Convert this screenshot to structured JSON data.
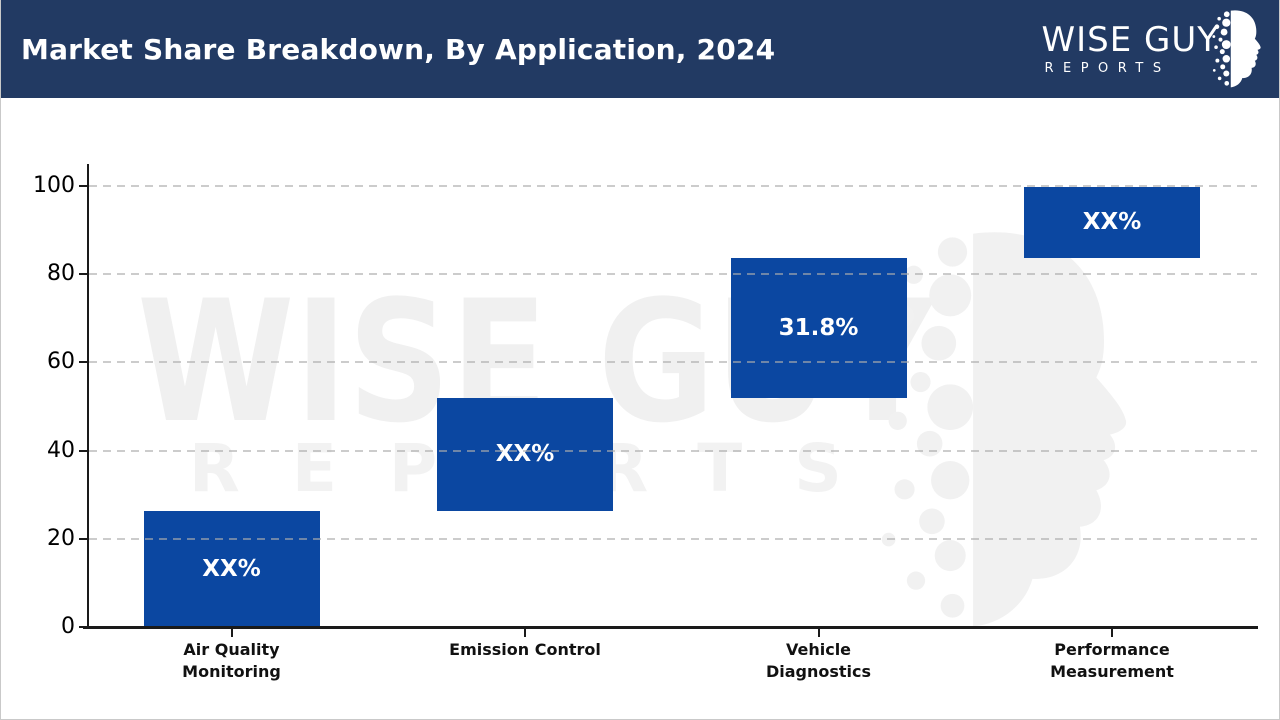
{
  "page": {
    "background": "#ffffff",
    "border_color": "#c9c9c9"
  },
  "header": {
    "title": "Market Share Breakdown, By Application, 2024",
    "bg_color": "#223a63",
    "text_color": "#ffffff",
    "logo": {
      "line1": "WISE GUY",
      "line2": "REPORTS"
    }
  },
  "watermark": {
    "line1": "WISE GUY",
    "line2": "REPORTS"
  },
  "chart_data": {
    "type": "bar",
    "subtype": "floating-segment bars (waterfall-style market share breakdown)",
    "title": "",
    "xlabel": "",
    "ylabel": "",
    "categories": [
      "Air Quality\nMonitoring",
      "Emission Control",
      "Vehicle\nDiagnostics",
      "Performance\nMeasurement"
    ],
    "series": [
      {
        "name": "Market share (%)",
        "segments": [
          {
            "category": "Air Quality Monitoring",
            "start": 0,
            "end": 26.4,
            "label": "XX%"
          },
          {
            "category": "Emission Control",
            "start": 26.4,
            "end": 51.9,
            "label": "XX%"
          },
          {
            "category": "Vehicle Diagnostics",
            "start": 51.9,
            "end": 83.7,
            "label": "31.8%"
          },
          {
            "category": "Performance Measurement",
            "start": 83.7,
            "end": 99.8,
            "label": "XX%"
          }
        ]
      }
    ],
    "yticks": [
      0,
      20,
      40,
      60,
      80,
      100
    ],
    "ylim": [
      0,
      105
    ],
    "grid": "horizontal dashed gridlines at each ytick, drawn over the bars",
    "legend": "none",
    "bar_color": "#0b47a1",
    "bar_label_color": "#ffffff",
    "axis_color": "#1a1a1a",
    "grid_color": "#c8c8c8"
  }
}
